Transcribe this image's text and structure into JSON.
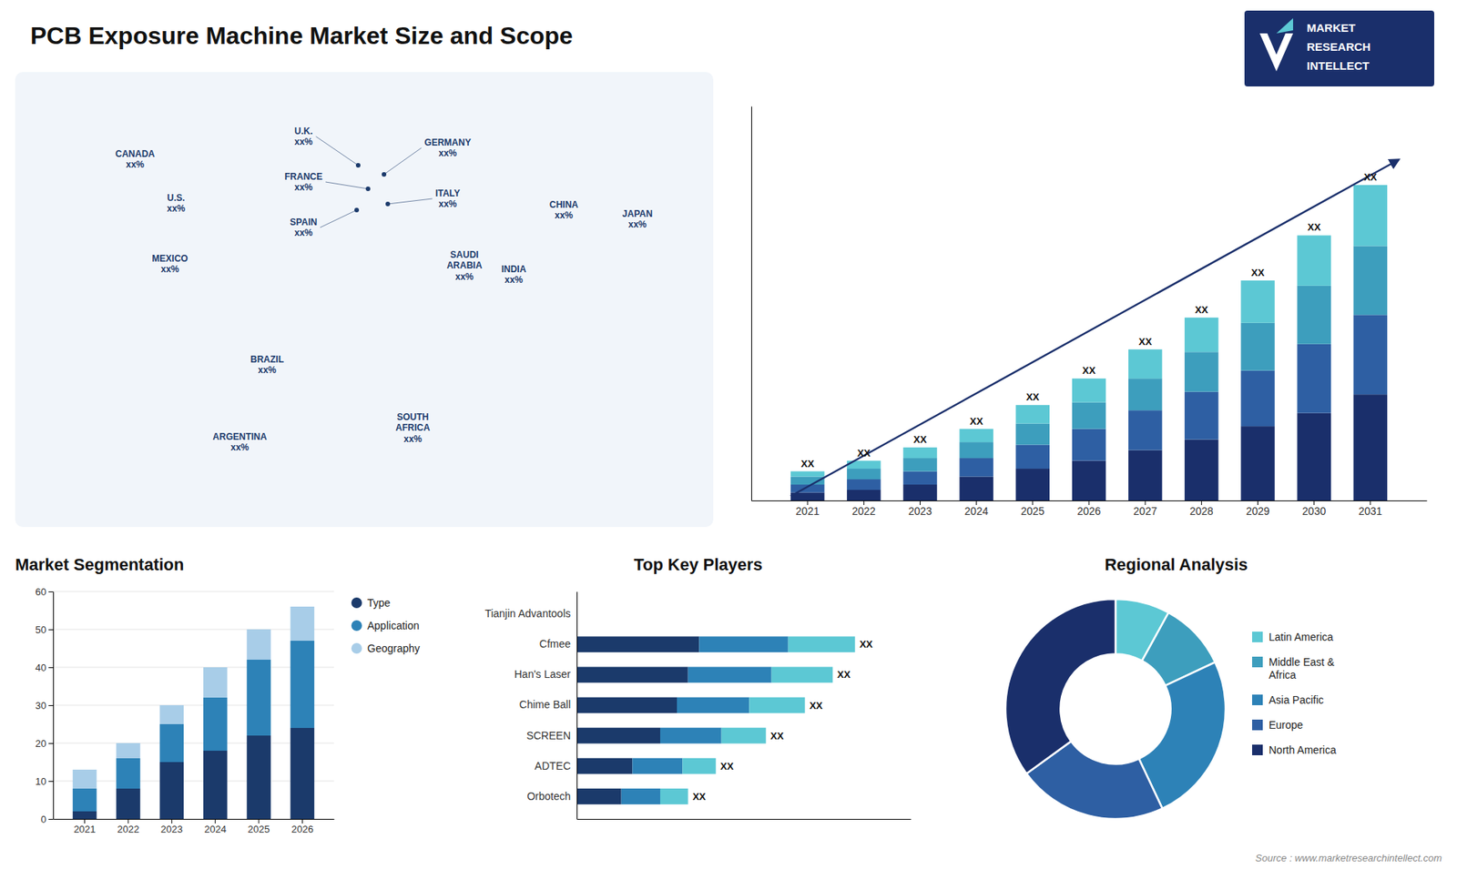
{
  "chart_data": [
    {
      "type": "map",
      "title": "PCB Exposure Machine Market Size and Scope",
      "categories": [
        "CANADA\nxx%",
        "U.S.\nxx%",
        "MEXICO\nxx%",
        "BRAZIL\nxx%",
        "ARGENTINA\nxx%",
        "U.K.\nxx%",
        "FRANCE\nxx%",
        "SPAIN\nxx%",
        "GERMANY\nxx%",
        "ITALY\nxx%",
        "SAUDI\nARABIA\nxx%",
        "SOUTH\nAFRICA\nxx%",
        "CHINA\nxx%",
        "INDIA\nxx%",
        "JAPAN\nxx%"
      ],
      "color": "#1b3a6b",
      "annotations": [
        "MARKET",
        "RESEARCH",
        "INTELLECT",
        "Source : www.marketresearchintellect.com"
      ]
    },
    {
      "type": "bar",
      "stacked": true,
      "categories": [
        "2021",
        "2022",
        "2023",
        "2024",
        "2025",
        "2026",
        "2027",
        "2028",
        "2029",
        "2030",
        "2031"
      ],
      "series": [
        {
          "color": "#1a2f6b",
          "values": [
            3,
            4,
            6,
            9,
            12,
            15,
            19,
            23,
            28,
            33,
            40
          ]
        },
        {
          "color": "#2e5fa3",
          "values": [
            3,
            4,
            5,
            7,
            9,
            12,
            15,
            18,
            21,
            26,
            30
          ]
        },
        {
          "color": "#3d9ebd",
          "values": [
            3,
            4,
            5,
            6,
            8,
            10,
            12,
            15,
            18,
            22,
            26
          ]
        },
        {
          "color": "#5cc8d4",
          "values": [
            2,
            3,
            4,
            5,
            7,
            9,
            11,
            13,
            16,
            19,
            23
          ]
        }
      ],
      "ylim": [
        0,
        148.75
      ],
      "tick_labels": "x",
      "annotations": [
        "XX",
        "XX",
        "XX",
        "XX",
        "XX",
        "XX",
        "XX",
        "XX",
        "XX",
        "XX",
        "XX"
      ]
    },
    {
      "type": "bar",
      "stacked": true,
      "title": "Market Segmentation",
      "categories": [
        "2021",
        "2022",
        "2023",
        "2024",
        "2025",
        "2026"
      ],
      "series": [
        {
          "name": "Type",
          "color": "#1b3a6b",
          "values": [
            2,
            8,
            15,
            18,
            22,
            24
          ]
        },
        {
          "name": "Application",
          "color": "#2d82b7",
          "values": [
            6,
            8,
            10,
            14,
            20,
            23
          ]
        },
        {
          "name": "Geography",
          "color": "#a8cde8",
          "values": [
            5,
            4,
            5,
            8,
            8,
            9
          ]
        }
      ],
      "ylim": [
        0,
        60
      ],
      "yticks": [
        0,
        10,
        20,
        30,
        40,
        50,
        60
      ],
      "grid": true,
      "legend": "right"
    },
    {
      "type": "bar",
      "orientation": "horizontal",
      "stacked": true,
      "title": "Top Key Players",
      "categories": [
        "Tianjin Advantools",
        "Cfmee",
        "Han's Laser",
        "Chime Ball",
        "SCREEN",
        "ADTEC",
        "Orbotech"
      ],
      "series": [
        {
          "color": "#1b3a6b",
          "values": [
            0,
            22,
            20,
            18,
            15,
            10,
            8
          ]
        },
        {
          "color": "#2d82b7",
          "values": [
            0,
            16,
            15,
            13,
            11,
            9,
            7
          ]
        },
        {
          "color": "#5cc8d4",
          "values": [
            0,
            12,
            11,
            10,
            8,
            6,
            5
          ]
        }
      ],
      "xlim": [
        0,
        60
      ],
      "tick_labels": "y",
      "annotations": [
        "XX",
        "XX",
        "XX",
        "XX",
        "XX",
        "XX"
      ]
    },
    {
      "type": "pie",
      "title": "Regional Analysis",
      "categories": [
        "Latin America",
        "Middle East &\nAfrica",
        "Asia Pacific",
        "Europe",
        "North America"
      ],
      "values": [
        8,
        10,
        25,
        22,
        35
      ],
      "colors": [
        "#5cc8d4",
        "#3d9ebd",
        "#2d82b7",
        "#2e5fa3",
        "#1a2f6b"
      ],
      "legend": "right"
    }
  ]
}
